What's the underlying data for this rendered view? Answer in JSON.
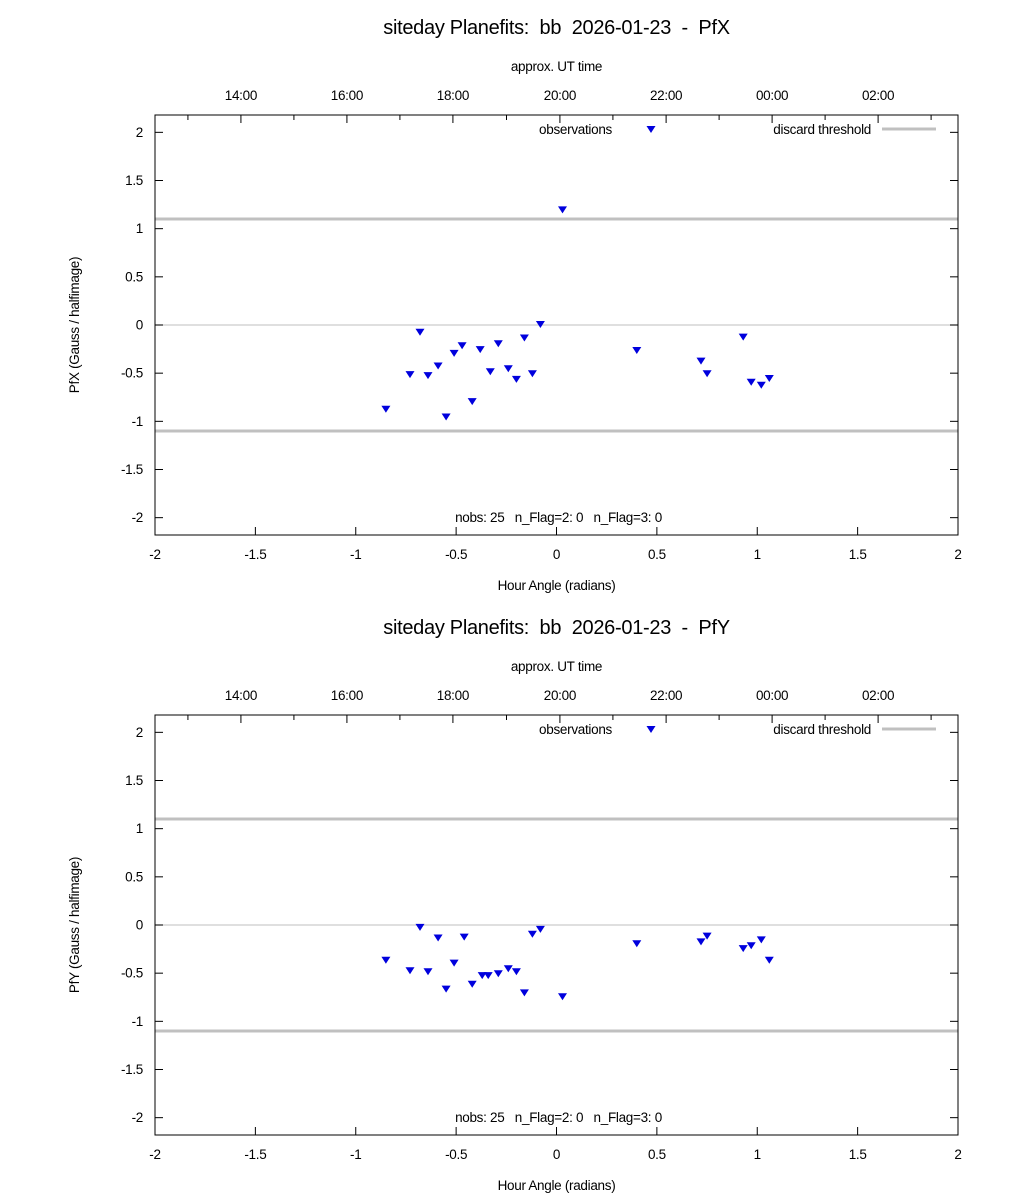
{
  "page": {
    "background": "#ffffff"
  },
  "chart_data": [
    {
      "type": "scatter",
      "title": "siteday Planefits:  bb  2026-01-23  -  PfX",
      "top_axis_title": "approx. UT time",
      "xlabel": "Hour Angle (radians)",
      "ylabel": "PfX (Gauss / halfimage)",
      "annotation": "nobs: 25   n_Flag=2: 0   n_Flag=3: 0",
      "xlim": [
        -2,
        2
      ],
      "ylim": [
        -2.18,
        2.18
      ],
      "grid": false,
      "legend_position": "top-right-inside",
      "legend": [
        {
          "label": "observations",
          "style": "point",
          "color": "#0000dd"
        },
        {
          "label": "discard threshold",
          "style": "line",
          "color": "#c0c0c0"
        }
      ],
      "x_ticks": [
        {
          "v": -2,
          "label": "-2"
        },
        {
          "v": -1.5,
          "label": "-1.5"
        },
        {
          "v": -1,
          "label": "-1"
        },
        {
          "v": -0.5,
          "label": "-0.5"
        },
        {
          "v": 0,
          "label": "0"
        },
        {
          "v": 0.5,
          "label": "0.5"
        },
        {
          "v": 1,
          "label": "1"
        },
        {
          "v": 1.5,
          "label": "1.5"
        },
        {
          "v": 2,
          "label": "2"
        }
      ],
      "y_ticks": [
        {
          "v": 2,
          "label": "2"
        },
        {
          "v": 1.5,
          "label": "1.5"
        },
        {
          "v": 1,
          "label": "1"
        },
        {
          "v": 0.5,
          "label": "0.5"
        },
        {
          "v": 0,
          "label": "0"
        },
        {
          "v": -0.5,
          "label": "-0.5"
        },
        {
          "v": -1,
          "label": "-1"
        },
        {
          "v": -1.5,
          "label": "-1.5"
        },
        {
          "v": -2,
          "label": "-2"
        }
      ],
      "ut_ticks": [
        {
          "v": -1.572,
          "label": "14:00"
        },
        {
          "v": -1.044,
          "label": "16:00"
        },
        {
          "v": -0.516,
          "label": "18:00"
        },
        {
          "v": 0.017,
          "label": "20:00"
        },
        {
          "v": 0.546,
          "label": "22:00"
        },
        {
          "v": 1.074,
          "label": "00:00"
        },
        {
          "v": 1.602,
          "label": "02:00"
        }
      ],
      "ut_minor_ticks": [
        -1.836,
        -1.308,
        -0.78,
        -0.249,
        0.281,
        0.81,
        1.338,
        1.866
      ],
      "threshold_values": [
        1.1,
        -1.1
      ],
      "zero_line_value": 0,
      "points": [
        [
          0.03,
          1.2
        ],
        [
          -0.85,
          -0.87
        ],
        [
          -0.73,
          -0.51
        ],
        [
          -0.68,
          -0.07
        ],
        [
          -0.64,
          -0.52
        ],
        [
          -0.59,
          -0.42
        ],
        [
          -0.55,
          -0.95
        ],
        [
          -0.51,
          -0.29
        ],
        [
          -0.47,
          -0.21
        ],
        [
          -0.42,
          -0.79
        ],
        [
          -0.38,
          -0.25
        ],
        [
          -0.33,
          -0.48
        ],
        [
          -0.29,
          -0.19
        ],
        [
          -0.24,
          -0.45
        ],
        [
          -0.2,
          -0.56
        ],
        [
          -0.16,
          -0.13
        ],
        [
          -0.12,
          -0.5
        ],
        [
          -0.08,
          0.01
        ],
        [
          0.4,
          -0.26
        ],
        [
          0.72,
          -0.37
        ],
        [
          0.75,
          -0.5
        ],
        [
          0.93,
          -0.12
        ],
        [
          0.97,
          -0.59
        ],
        [
          1.02,
          -0.62
        ],
        [
          1.06,
          -0.55
        ]
      ],
      "colors": {
        "points": "#0000dd",
        "threshold": "#c0c0c0",
        "zero_line": "#cccccc",
        "border": "#000000"
      }
    },
    {
      "type": "scatter",
      "title": "siteday Planefits:  bb  2026-01-23  -  PfY",
      "top_axis_title": "approx. UT time",
      "xlabel": "Hour Angle (radians)",
      "ylabel": "PfY (Gauss / halfimage)",
      "annotation": "nobs: 25   n_Flag=2: 0   n_Flag=3: 0",
      "xlim": [
        -2,
        2
      ],
      "ylim": [
        -2.18,
        2.18
      ],
      "grid": false,
      "legend_position": "top-right-inside",
      "legend": [
        {
          "label": "observations",
          "style": "point",
          "color": "#0000dd"
        },
        {
          "label": "discard threshold",
          "style": "line",
          "color": "#c0c0c0"
        }
      ],
      "x_ticks": [
        {
          "v": -2,
          "label": "-2"
        },
        {
          "v": -1.5,
          "label": "-1.5"
        },
        {
          "v": -1,
          "label": "-1"
        },
        {
          "v": -0.5,
          "label": "-0.5"
        },
        {
          "v": 0,
          "label": "0"
        },
        {
          "v": 0.5,
          "label": "0.5"
        },
        {
          "v": 1,
          "label": "1"
        },
        {
          "v": 1.5,
          "label": "1.5"
        },
        {
          "v": 2,
          "label": "2"
        }
      ],
      "y_ticks": [
        {
          "v": 2,
          "label": "2"
        },
        {
          "v": 1.5,
          "label": "1.5"
        },
        {
          "v": 1,
          "label": "1"
        },
        {
          "v": 0.5,
          "label": "0.5"
        },
        {
          "v": 0,
          "label": "0"
        },
        {
          "v": -0.5,
          "label": "-0.5"
        },
        {
          "v": -1,
          "label": "-1"
        },
        {
          "v": -1.5,
          "label": "-1.5"
        },
        {
          "v": -2,
          "label": "-2"
        }
      ],
      "ut_ticks": [
        {
          "v": -1.572,
          "label": "14:00"
        },
        {
          "v": -1.044,
          "label": "16:00"
        },
        {
          "v": -0.516,
          "label": "18:00"
        },
        {
          "v": 0.017,
          "label": "20:00"
        },
        {
          "v": 0.546,
          "label": "22:00"
        },
        {
          "v": 1.074,
          "label": "00:00"
        },
        {
          "v": 1.602,
          "label": "02:00"
        }
      ],
      "ut_minor_ticks": [
        -1.836,
        -1.308,
        -0.78,
        -0.249,
        0.281,
        0.81,
        1.338,
        1.866
      ],
      "threshold_values": [
        1.1,
        -1.1
      ],
      "zero_line_value": 0,
      "points": [
        [
          -0.85,
          -0.36
        ],
        [
          -0.73,
          -0.47
        ],
        [
          -0.68,
          -0.02
        ],
        [
          -0.64,
          -0.48
        ],
        [
          -0.59,
          -0.13
        ],
        [
          -0.55,
          -0.66
        ],
        [
          -0.51,
          -0.39
        ],
        [
          -0.46,
          -0.12
        ],
        [
          -0.42,
          -0.61
        ],
        [
          -0.37,
          -0.52
        ],
        [
          -0.34,
          -0.52
        ],
        [
          -0.29,
          -0.5
        ],
        [
          -0.24,
          -0.45
        ],
        [
          -0.2,
          -0.48
        ],
        [
          -0.16,
          -0.7
        ],
        [
          -0.12,
          -0.09
        ],
        [
          -0.08,
          -0.04
        ],
        [
          0.03,
          -0.74
        ],
        [
          0.4,
          -0.19
        ],
        [
          0.72,
          -0.17
        ],
        [
          0.75,
          -0.11
        ],
        [
          0.93,
          -0.24
        ],
        [
          0.97,
          -0.21
        ],
        [
          1.02,
          -0.15
        ],
        [
          1.06,
          -0.36
        ]
      ],
      "colors": {
        "points": "#0000dd",
        "threshold": "#c0c0c0",
        "zero_line": "#cccccc",
        "border": "#000000"
      }
    }
  ]
}
